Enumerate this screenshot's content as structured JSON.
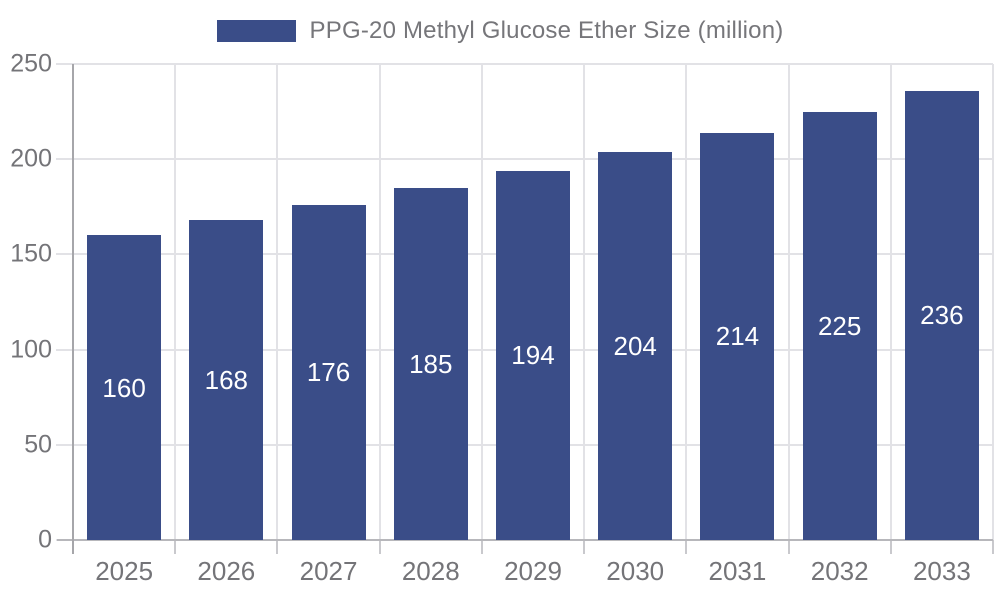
{
  "chart_data": {
    "type": "bar",
    "title": "PPG-20 Methyl Glucose Ether Size (million)",
    "legend_position": "top",
    "categories": [
      "2025",
      "2026",
      "2027",
      "2028",
      "2029",
      "2030",
      "2031",
      "2032",
      "2033"
    ],
    "values": [
      160,
      168,
      176,
      185,
      194,
      204,
      214,
      225,
      236
    ],
    "xlabel": "",
    "ylabel": "",
    "ylim": [
      0,
      250
    ],
    "yticks": [
      0,
      50,
      100,
      150,
      200,
      250
    ],
    "grid": true,
    "value_labels": "centered inside bars",
    "colors": {
      "bar": "#3A4D88",
      "value_label": "#FFFFFF",
      "axis_label": "#747478",
      "legend_label": "#76767A",
      "grid_line": "#E2E2E6",
      "y_axis_line": "#A6A6AA",
      "x_axis_line": "#B7B7BB",
      "tick_mark": "#C9C9CD",
      "background": "#FFFFFF"
    }
  }
}
